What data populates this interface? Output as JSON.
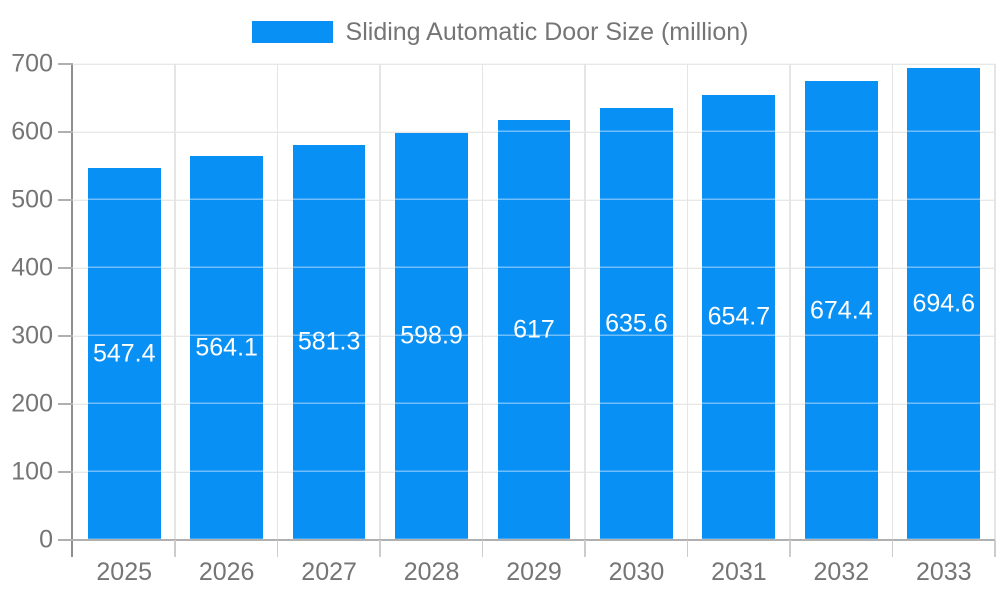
{
  "legend": {
    "label": "Sliding Automatic Door Size (million)"
  },
  "chart_data": {
    "type": "bar",
    "title": "Sliding Automatic Door Size (million)",
    "categories": [
      "2025",
      "2026",
      "2027",
      "2028",
      "2029",
      "2030",
      "2031",
      "2032",
      "2033"
    ],
    "values": [
      547.4,
      564.1,
      581.3,
      598.9,
      617,
      635.6,
      654.7,
      674.4,
      694.6
    ],
    "value_labels": [
      "547.4",
      "564.1",
      "581.3",
      "598.9",
      "617",
      "635.6",
      "654.7",
      "674.4",
      "694.6"
    ],
    "xlabel": "",
    "ylabel": "",
    "ylim": [
      0,
      700
    ],
    "ytick_step": 100,
    "yticks": [
      0,
      100,
      200,
      300,
      400,
      500,
      600,
      700
    ],
    "grid": true,
    "legend_position": "top-center",
    "colors": {
      "bar": "#0990f5",
      "bar_label": "#ffffff",
      "axis_text": "#757575",
      "axis_line": "#8e8e8e",
      "baseline": "#b0b0b0",
      "gridline": "#e0e0e0",
      "background": "#ffffff"
    }
  }
}
